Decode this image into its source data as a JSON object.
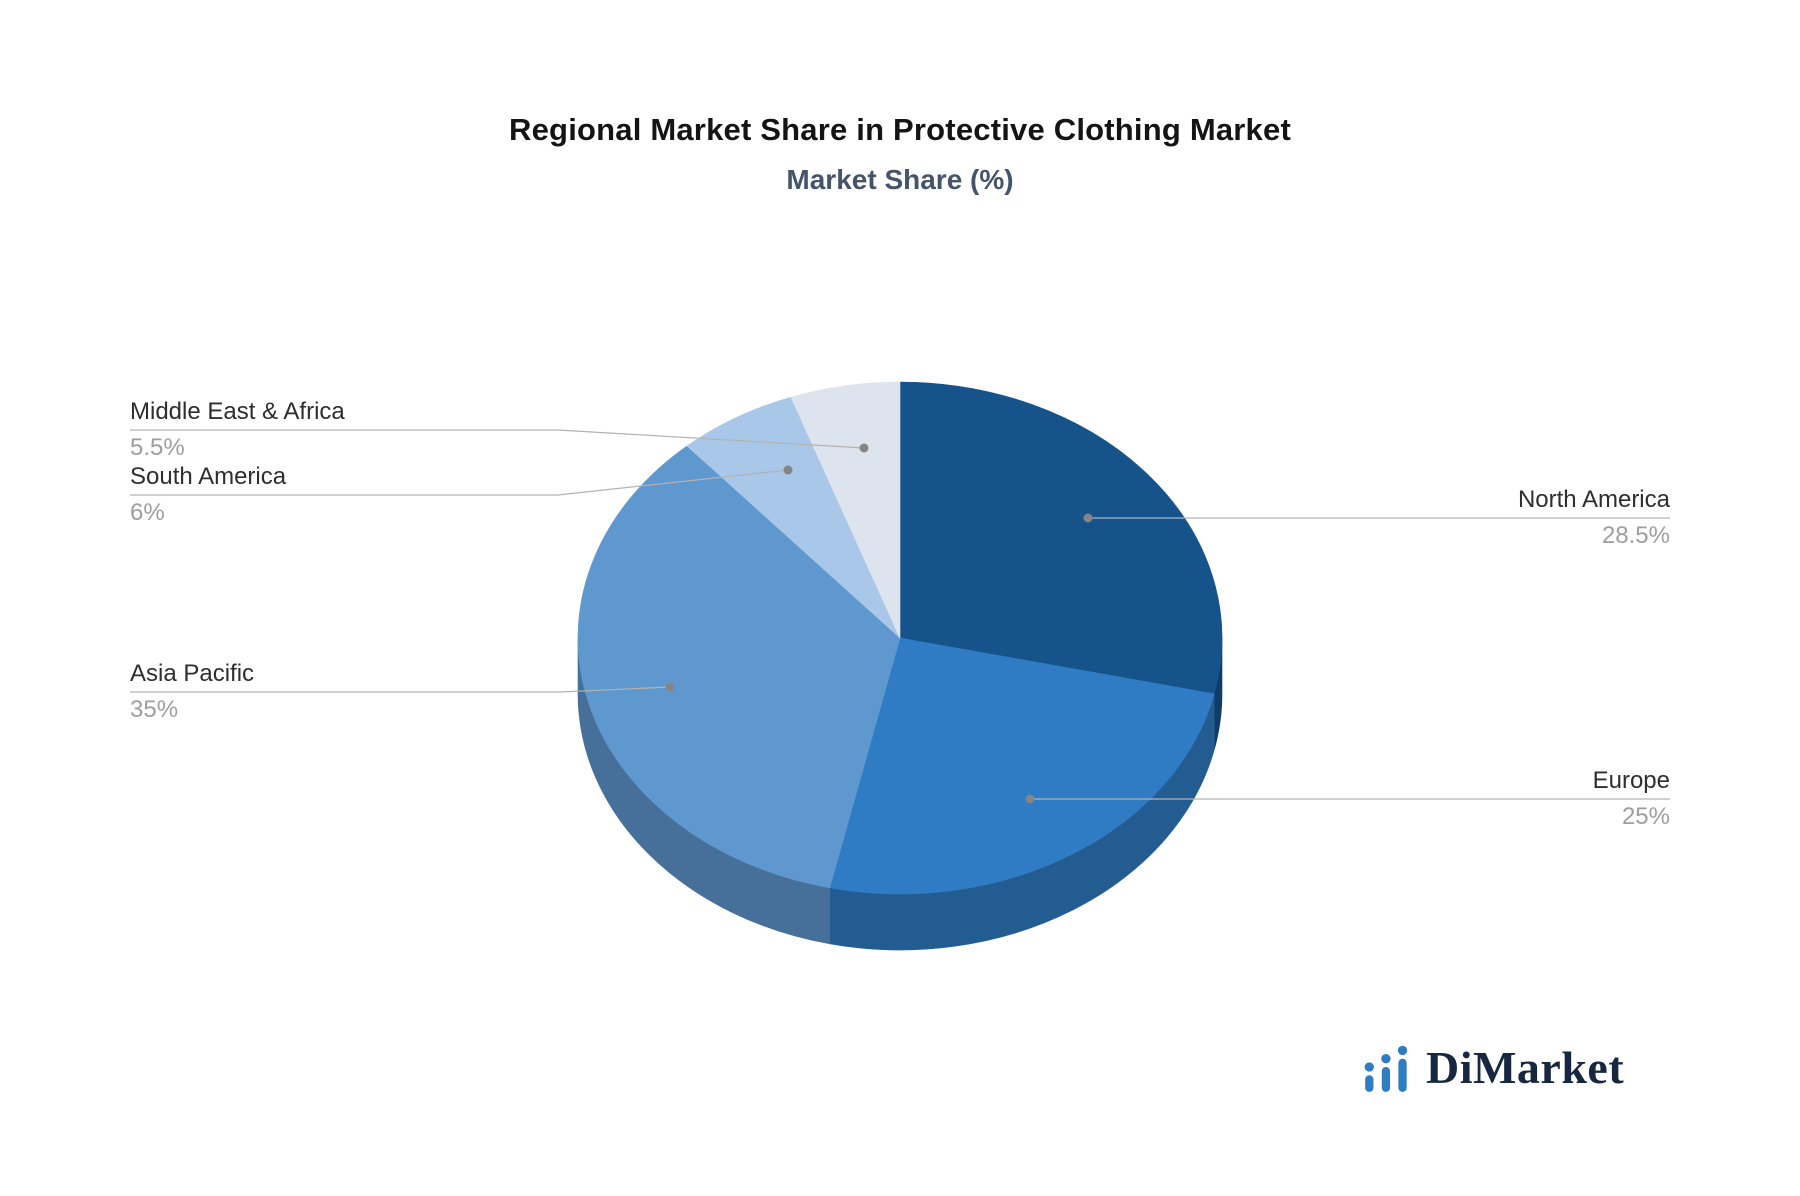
{
  "title": "Regional Market Share in Protective Clothing Market",
  "subtitle": "Market Share (%)",
  "logo": {
    "text": "DiMarket",
    "accent_color": "#2f7dc0",
    "text_color": "#17273f"
  },
  "chart_data": {
    "type": "pie",
    "title": "Regional Market Share in Protective Clothing Market",
    "subtitle": "Market Share (%)",
    "unit": "%",
    "style": "3d-pie",
    "start_angle_deg": 0,
    "direction": "clockwise",
    "legend": "callout-labels-with-leader-lines",
    "slices": [
      {
        "label": "North America",
        "value": 28.5,
        "display": "28.5%",
        "color": "#16538b"
      },
      {
        "label": "Europe",
        "value": 25,
        "display": "25%",
        "color": "#2f7cc4"
      },
      {
        "label": "Asia Pacific",
        "value": 35,
        "display": "35%",
        "color": "#5f98cf"
      },
      {
        "label": "South America",
        "value": 6,
        "display": "6%",
        "color": "#a9c7e8"
      },
      {
        "label": "Middle East & Africa",
        "value": 5.5,
        "display": "5.5%",
        "color": "#dde4ee"
      }
    ]
  }
}
